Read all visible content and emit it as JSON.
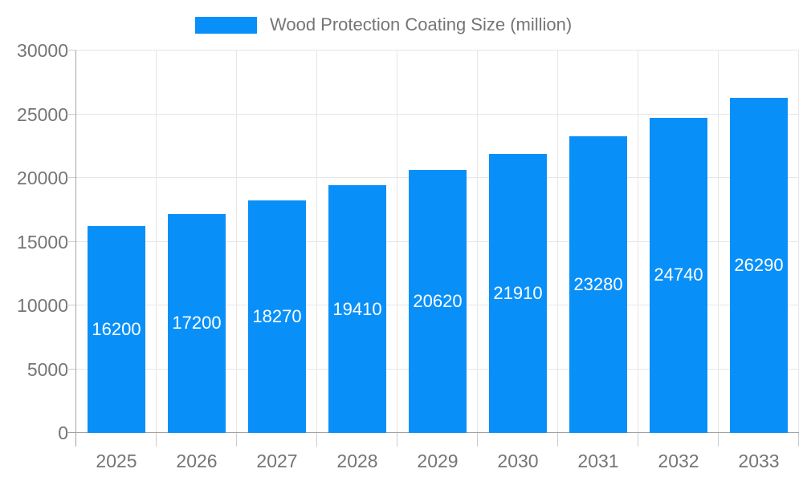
{
  "legend": {
    "label": "Wood Protection Coating Size (million)"
  },
  "colors": {
    "bar": "#0990f8",
    "axis_text": "#757575",
    "value_label_text": "#ffffff",
    "gridline": "#e6e6e6",
    "axis_line": "#a3a3a3",
    "tick": "#cccccc",
    "background": "#ffffff"
  },
  "chart_data": {
    "type": "bar",
    "title": "Wood Protection Coating Size (million)",
    "categories": [
      "2025",
      "2026",
      "2027",
      "2028",
      "2029",
      "2030",
      "2031",
      "2032",
      "2033"
    ],
    "values": [
      16200,
      17200,
      18270,
      19410,
      20620,
      21910,
      23280,
      24740,
      26290
    ],
    "series": [
      {
        "name": "Wood Protection Coating Size (million)",
        "values": [
          16200,
          17200,
          18270,
          19410,
          20620,
          21910,
          23280,
          24740,
          26290
        ]
      }
    ],
    "xlabel": "",
    "ylabel": "",
    "ylim": [
      0,
      30000
    ],
    "y_ticks": [
      0,
      5000,
      10000,
      15000,
      20000,
      25000,
      30000
    ],
    "grid": true,
    "legend_position": "top-center",
    "value_label_placement": "inside-bar-center"
  }
}
